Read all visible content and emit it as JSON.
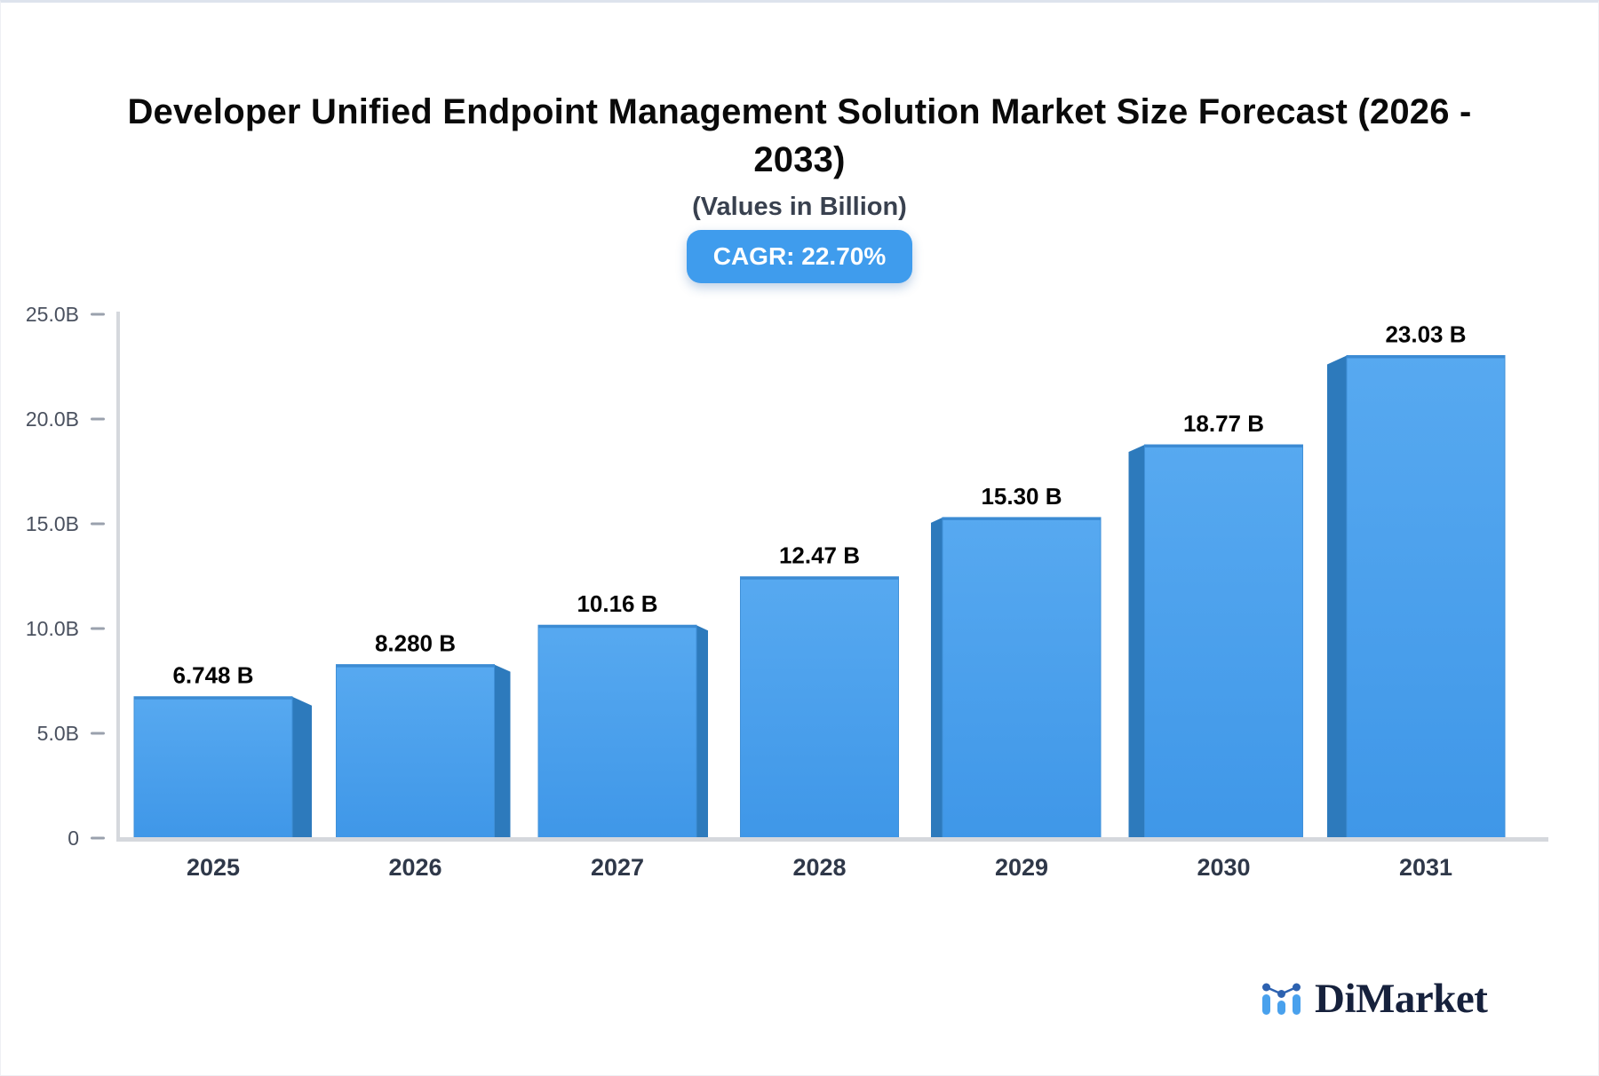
{
  "header": {
    "title_line1": "Developer Unified Endpoint Management Solution Market Size Forecast (2026 -",
    "title_line2": "2033)",
    "subtitle": "(Values in Billion)",
    "cagr_badge": "CAGR: 22.70%"
  },
  "chart_data": {
    "type": "bar",
    "title": "Developer Unified Endpoint Management Solution Market Size Forecast (2026 - 2033)",
    "subtitle": "(Values in Billion)",
    "cagr_percent": 22.7,
    "categories": [
      "2025",
      "2026",
      "2027",
      "2028",
      "2029",
      "2030",
      "2031"
    ],
    "values": [
      6.748,
      8.28,
      10.16,
      12.47,
      15.3,
      18.77,
      23.03
    ],
    "value_labels": [
      "6.748 B",
      "8.280 B",
      "10.16 B",
      "12.47 B",
      "15.30 B",
      "18.77 B",
      "23.03 B"
    ],
    "ylim": [
      0,
      25
    ],
    "yticks": [
      0,
      5,
      10,
      15,
      20,
      25
    ],
    "ytick_labels": [
      "0",
      "5.0B",
      "10.0B",
      "15.0B",
      "20.0B",
      "25.0B"
    ],
    "grid": false,
    "legend": "none",
    "bar_style": "3d-perspective"
  },
  "branding": {
    "logo_text": "DiMarket",
    "logo_icon": "bar-chart-with-trendline-icon"
  },
  "colors": {
    "bar_face_top": "#57a9f0",
    "bar_face_bottom": "#3f97e8",
    "bar_side": "#2d7abc",
    "bar_top_edge": "#3c8bd3",
    "bar_outline": "#4090d8",
    "badge_bg": "#3f9ced",
    "badge_text": "#ffffff",
    "axis": "#d5d8dd",
    "tick": "#9aa1ad",
    "tick_label": "#4a515f",
    "year_label": "#2f3849",
    "value_label": "#030303",
    "title": "#0a0a0a",
    "subtitle": "#39414f",
    "logo_text_color": "#16213c",
    "logo_bar": "#49a1ed",
    "logo_dot": "#2d62b0"
  }
}
